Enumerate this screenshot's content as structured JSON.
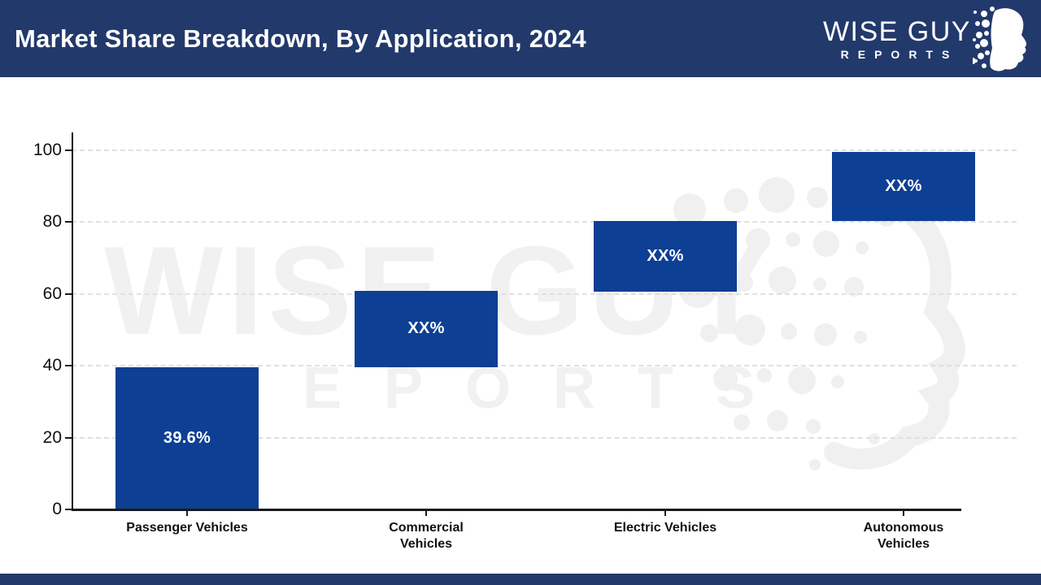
{
  "header": {
    "title": "Market Share Breakdown, By Application, 2024",
    "logo": {
      "line1": "WISE GUY",
      "line2": "REPORTS"
    }
  },
  "watermark": {
    "line1": "WISE GUY",
    "line2": "REPORTS"
  },
  "footer": {},
  "colors": {
    "header_bg": "#22396b",
    "footer_bg": "#22396b",
    "bar": "#0d3f94",
    "bar_label": "#ffffff",
    "gridline": "#e0e0e0",
    "watermark": "#f1f1f1",
    "axis": "#1a1a1a"
  },
  "chart_data": {
    "type": "bar",
    "subtype": "waterfall",
    "title": "Market Share Breakdown, By Application, 2024",
    "xlabel": "",
    "ylabel": "",
    "ylim": [
      0,
      105
    ],
    "yticks": [
      0,
      20,
      40,
      60,
      80,
      100
    ],
    "grid": "horizontal-dashed",
    "legend": "none",
    "categories": [
      "Passenger Vehicles",
      "Commercial Vehicles",
      "Electric Vehicles",
      "Autonomous Vehicles"
    ],
    "segments": [
      {
        "category": "Passenger Vehicles",
        "tick_label_lines": [
          "Passenger Vehicles"
        ],
        "base": 0,
        "top": 39.6,
        "label": "39.6%"
      },
      {
        "category": "Commercial Vehicles",
        "tick_label_lines": [
          "Commercial",
          "Vehicles"
        ],
        "base": 39.6,
        "top": 60.9,
        "label": "XX%"
      },
      {
        "category": "Electric Vehicles",
        "tick_label_lines": [
          "Electric Vehicles"
        ],
        "base": 60.6,
        "top": 80.3,
        "label": "XX%"
      },
      {
        "category": "Autonomous Vehicles",
        "tick_label_lines": [
          "Autonomous",
          "Vehicles"
        ],
        "base": 80.4,
        "top": 99.6,
        "label": "XX%"
      }
    ]
  }
}
